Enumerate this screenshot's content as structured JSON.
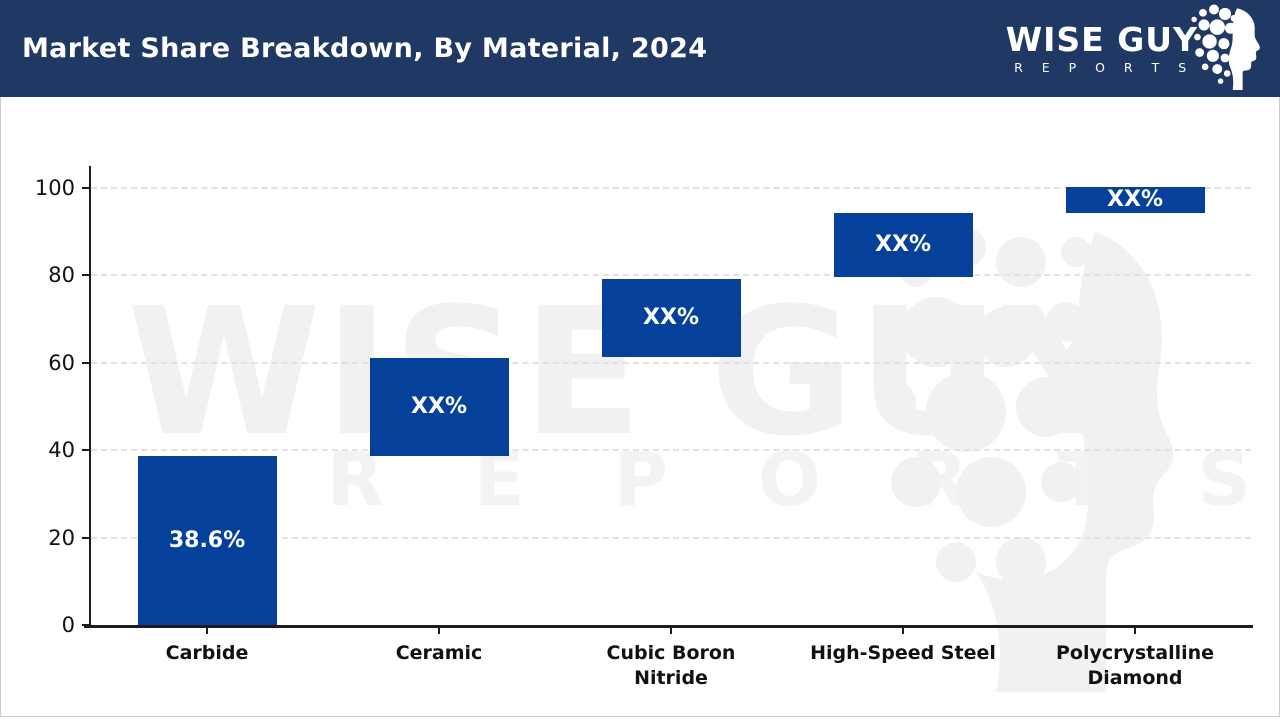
{
  "header": {
    "title": "Market Share Breakdown, By Material, 2024",
    "bg_color": "#203864",
    "logo": {
      "wordmark": "WISE GUY",
      "sub": "R E P O R T S"
    }
  },
  "watermark": {
    "line1": "WISE GUY",
    "line2": "R E P O R T S"
  },
  "chart_data": {
    "type": "bar",
    "subtype": "waterfall",
    "title": "Market Share Breakdown, By Material, 2024",
    "xlabel": "",
    "ylabel": "",
    "ylim": [
      0,
      105
    ],
    "yticks": [
      0,
      20,
      40,
      60,
      80,
      100
    ],
    "grid": true,
    "legend": false,
    "bar_color": "#05419b",
    "value_label_color": "#ffffff",
    "categories": [
      "Carbide",
      "Ceramic",
      "Cubic Boron Nitride",
      "High-Speed Steel",
      "Polycrystalline Diamond"
    ],
    "segments": [
      {
        "category": "Carbide",
        "category_lines": [
          "Carbide"
        ],
        "start": 0,
        "end": 38.6,
        "label": "38.6%"
      },
      {
        "category": "Ceramic",
        "category_lines": [
          "Ceramic"
        ],
        "start": 38.6,
        "end": 61.0,
        "label": "XX%"
      },
      {
        "category": "Cubic Boron Nitride",
        "category_lines": [
          "Cubic Boron",
          "Nitride"
        ],
        "start": 61.2,
        "end": 79.1,
        "label": "XX%"
      },
      {
        "category": "High-Speed Steel",
        "category_lines": [
          "High-Speed Steel"
        ],
        "start": 79.5,
        "end": 94.2,
        "label": "XX%"
      },
      {
        "category": "Polycrystalline Diamond",
        "category_lines": [
          "Polycrystalline",
          "Diamond"
        ],
        "start": 94.2,
        "end": 100.2,
        "label": "XX%"
      }
    ]
  }
}
